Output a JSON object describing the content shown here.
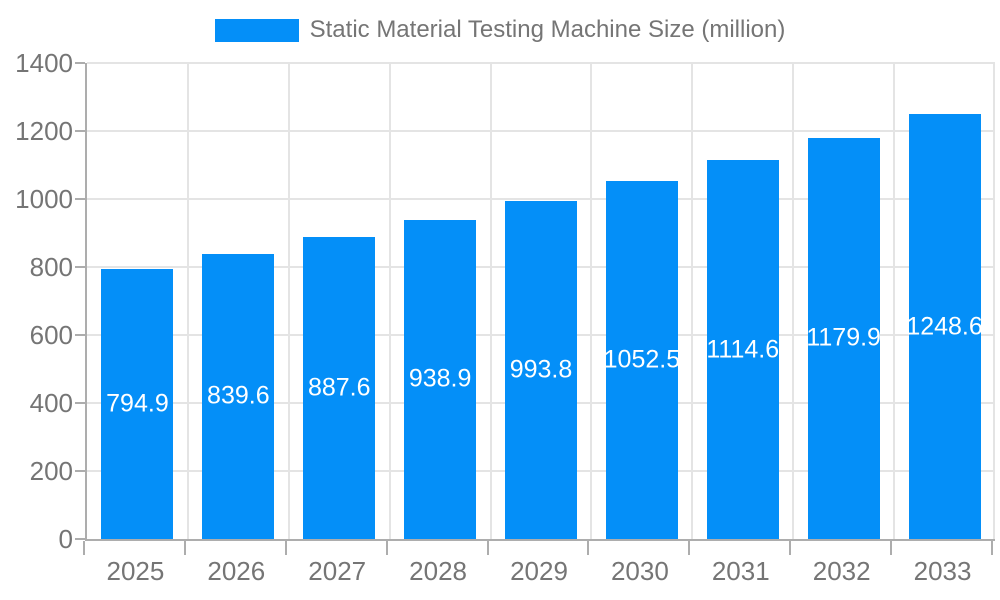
{
  "chart_data": {
    "type": "bar",
    "title": "Static Material Testing Machine Size (million)",
    "categories": [
      "2025",
      "2026",
      "2027",
      "2028",
      "2029",
      "2030",
      "2031",
      "2032",
      "2033"
    ],
    "values": [
      794.9,
      839.6,
      887.6,
      938.9,
      993.8,
      1052.5,
      1114.6,
      1179.9,
      1248.6
    ],
    "bar_labels": [
      "794.9",
      "839.6",
      "887.6",
      "938.9",
      "993.8",
      "1052.5",
      "1114.6",
      "1179.9",
      "1248.6"
    ],
    "xlabel": "",
    "ylabel": "",
    "ylim": [
      0,
      1400
    ],
    "y_ticks": [
      0,
      200,
      400,
      600,
      800,
      1000,
      1200,
      1400
    ],
    "grid": true,
    "legend_position": "top-center",
    "colors": {
      "bar": "#048FF8",
      "grid": "#e4e4e4",
      "axis": "#adadad",
      "tick_text": "#757575",
      "bar_label_text": "#ffffff",
      "background": "#ffffff"
    }
  }
}
